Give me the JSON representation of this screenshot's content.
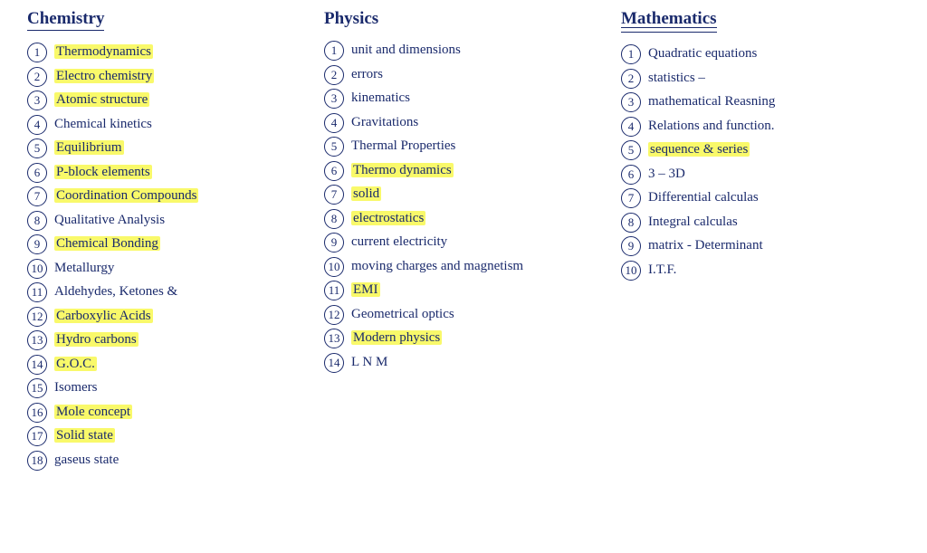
{
  "colors": {
    "ink": "#1a2a6c",
    "highlight": "#f9f96a",
    "paper": "#ffffff"
  },
  "columns": {
    "chemistry": {
      "heading": "Chemistry",
      "items": [
        {
          "text": "Thermodynamics",
          "highlight": true
        },
        {
          "text": "Electro chemistry",
          "highlight": true
        },
        {
          "text": "Atomic structure",
          "highlight": true
        },
        {
          "text": "Chemical kinetics",
          "highlight": false
        },
        {
          "text": "Equilibrium",
          "highlight": true
        },
        {
          "text": "P-block elements",
          "highlight": true
        },
        {
          "text": "Coordination Compounds",
          "highlight": true
        },
        {
          "text": "Qualitative Analysis",
          "highlight": false
        },
        {
          "text": "Chemical Bonding",
          "highlight": true
        },
        {
          "text": "Metallurgy",
          "highlight": false
        },
        {
          "text": "Aldehydes, Ketones &",
          "highlight": false
        },
        {
          "text": "Carboxylic Acids",
          "highlight": true
        },
        {
          "text": "Hydro carbons",
          "highlight": true
        },
        {
          "text": "G.O.C.",
          "highlight": true
        },
        {
          "text": "Isomers",
          "highlight": false
        },
        {
          "text": "Mole concept",
          "highlight": true
        },
        {
          "text": "Solid state",
          "highlight": true
        },
        {
          "text": "gaseus state",
          "highlight": false
        }
      ]
    },
    "physics": {
      "heading": "Physics",
      "items": [
        {
          "text": "unit and dimensions",
          "highlight": false
        },
        {
          "text": "errors",
          "highlight": false
        },
        {
          "text": "kinematics",
          "highlight": false
        },
        {
          "text": "Gravitations",
          "highlight": false
        },
        {
          "text": "Thermal Properties",
          "highlight": false
        },
        {
          "text": "Thermo dynamics",
          "highlight": true
        },
        {
          "text": "solid",
          "highlight": true
        },
        {
          "text": "electrostatics",
          "highlight": true
        },
        {
          "text": "current electricity",
          "highlight": false
        },
        {
          "text": "moving charges and magnetism",
          "highlight": false
        },
        {
          "text": "EMI",
          "highlight": true
        },
        {
          "text": "Geometrical optics",
          "highlight": false
        },
        {
          "text": "Modern physics",
          "highlight": true
        },
        {
          "text": "L N M",
          "highlight": false
        }
      ]
    },
    "mathematics": {
      "heading": "Mathematics",
      "items": [
        {
          "text": "Quadratic equations",
          "highlight": false
        },
        {
          "text": "statistics –",
          "highlight": false
        },
        {
          "text": "mathematical Reasning",
          "highlight": false
        },
        {
          "text": "Relations and function.",
          "highlight": false
        },
        {
          "text": "sequence & series",
          "highlight": true
        },
        {
          "text": "    3 – 3D",
          "highlight": false
        },
        {
          "text": "Differential calculas",
          "highlight": false
        },
        {
          "text": "Integral calculas",
          "highlight": false
        },
        {
          "text": "matrix - Determinant",
          "highlight": false
        },
        {
          "text": "I.T.F.",
          "highlight": false
        }
      ]
    }
  }
}
